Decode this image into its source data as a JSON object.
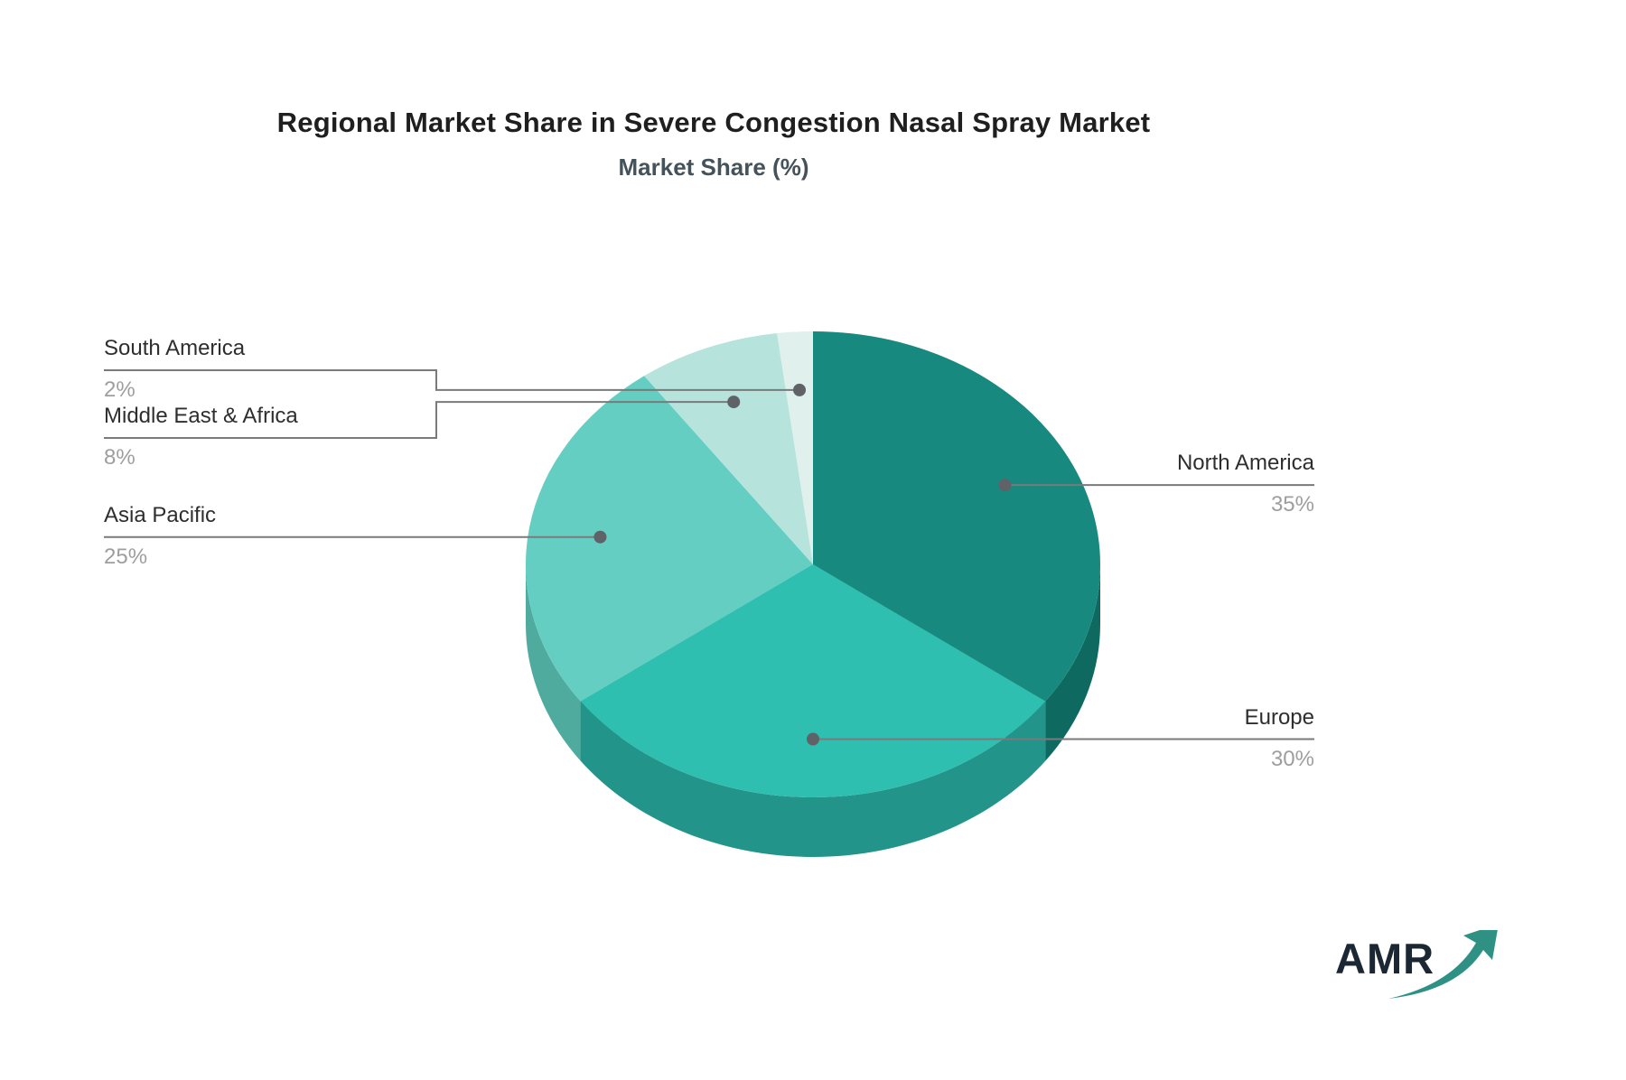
{
  "title": "Regional Market Share in Severe Congestion Nasal Spray Market",
  "subtitle": "Market Share (%)",
  "logo": {
    "text": "AMR"
  },
  "chart_data": {
    "type": "pie",
    "title": "Regional Market Share in Severe Congestion Nasal Spray Market",
    "subtitle": "Market Share (%)",
    "unit": "%",
    "effect": "3d",
    "direction": "clockwise",
    "start_angle_deg": 0,
    "legend_position": "none",
    "slices": [
      {
        "label": "North America",
        "value": 35,
        "color": "#17897E",
        "side_color": "#0E6A61"
      },
      {
        "label": "Europe",
        "value": 30,
        "color": "#2EBFB0",
        "side_color": "#23948A"
      },
      {
        "label": "Asia Pacific",
        "value": 25,
        "color": "#63CEC1",
        "side_color": "#50AB9F"
      },
      {
        "label": "Middle East & Africa",
        "value": 8,
        "color": "#B6E3DC",
        "side_color": "#8FC9C0"
      },
      {
        "label": "South America",
        "value": 2,
        "color": "#DFF0ED",
        "side_color": "#B3D6D0"
      }
    ],
    "wall_color": "#1C8278",
    "leader_line_color": "#7A7A7A",
    "leader_dot_color": "#5F6368",
    "label_color": "#2E2E2E",
    "value_color": "#9E9E9E"
  }
}
